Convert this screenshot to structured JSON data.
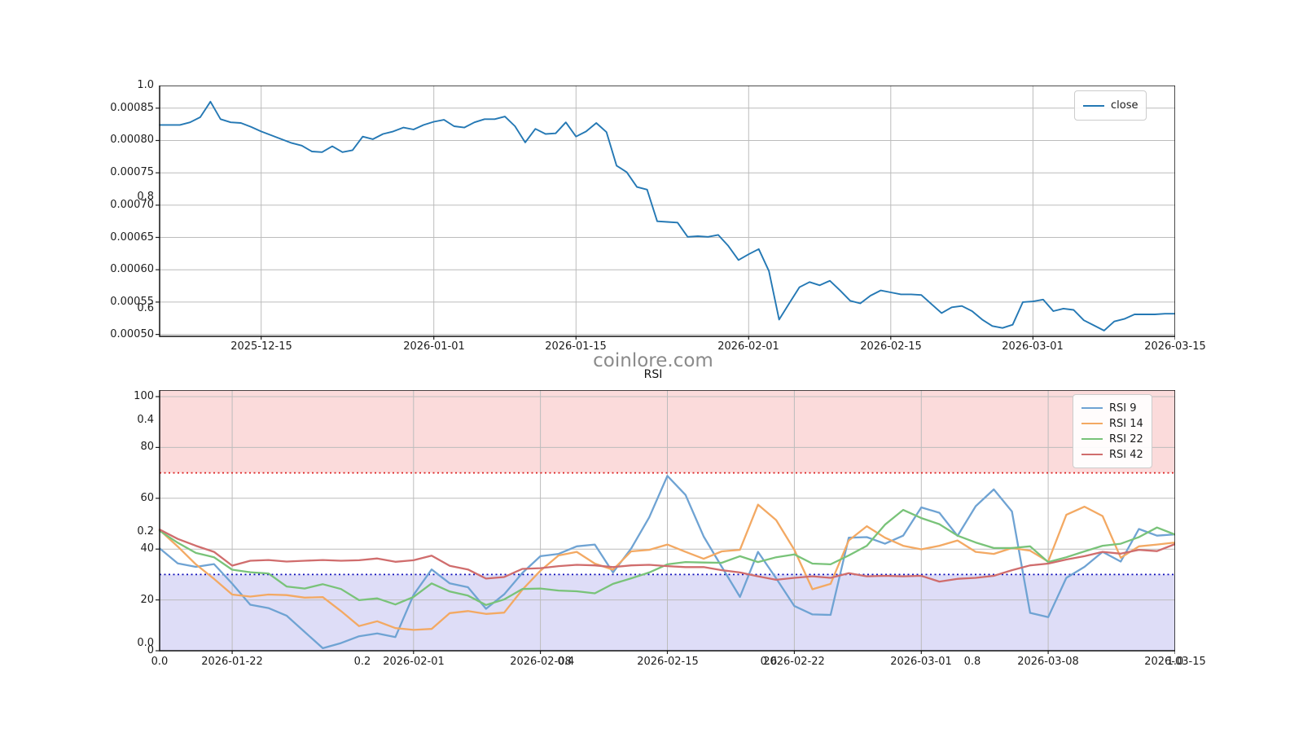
{
  "watermark": "coinlore.com",
  "overlay_axis": {
    "ytick_labels": [
      "1.0",
      "0.8",
      "0.6",
      "0.4",
      "0.2",
      "0.0"
    ],
    "xtick_labels": [
      "0.0",
      "0.2",
      "0.4",
      "0.6",
      "0.8",
      "1.0"
    ]
  },
  "chart_data": [
    {
      "id": "price",
      "type": "line",
      "title": "",
      "x_start": "2025-12-05",
      "x_end": "2026-03-15",
      "x_freq": "daily",
      "ylim": [
        0.000497,
        0.000885
      ],
      "grid": true,
      "legend_position": "upper right",
      "ytick_labels": [
        "0.00085",
        "0.00080",
        "0.00075",
        "0.00070",
        "0.00065",
        "0.00060",
        "0.00055",
        "0.00050"
      ],
      "ytick_values": [
        0.00085,
        0.0008,
        0.00075,
        0.0007,
        0.00065,
        0.0006,
        0.00055,
        0.0005
      ],
      "xtick_labels": [
        "2025-12-15",
        "2026-01-01",
        "2026-01-15",
        "2026-02-01",
        "2026-02-15",
        "2026-03-01",
        "2026-03-15"
      ],
      "xtick_day_index": [
        10,
        27,
        41,
        58,
        72,
        86,
        100
      ],
      "series": [
        {
          "name": "close",
          "color": "#2478b4",
          "width": 1.9,
          "values": [
            0.000824,
            0.000824,
            0.000824,
            0.000828,
            0.000836,
            0.00086,
            0.000833,
            0.000828,
            0.000827,
            0.000821,
            0.000814,
            0.000808,
            0.000802,
            0.000796,
            0.000792,
            0.000783,
            0.000782,
            0.000791,
            0.000782,
            0.000785,
            0.000806,
            0.000802,
            0.00081,
            0.000814,
            0.00082,
            0.000817,
            0.000824,
            0.000829,
            0.000832,
            0.000822,
            0.00082,
            0.000828,
            0.000833,
            0.000833,
            0.000837,
            0.000822,
            0.000797,
            0.000818,
            0.00081,
            0.000811,
            0.000828,
            0.000806,
            0.000814,
            0.000827,
            0.000813,
            0.000761,
            0.000751,
            0.000728,
            0.000724,
            0.000675,
            0.000674,
            0.000673,
            0.000651,
            0.000652,
            0.000651,
            0.000654,
            0.000637,
            0.000615,
            0.000624,
            0.000632,
            0.000598,
            0.000523,
            0.000548,
            0.000573,
            0.000581,
            0.000576,
            0.000583,
            0.000568,
            0.000552,
            0.000548,
            0.00056,
            0.000568,
            0.000565,
            0.000562,
            0.000562,
            0.000561,
            0.000547,
            0.000533,
            0.000542,
            0.000544,
            0.000536,
            0.000523,
            0.000513,
            0.00051,
            0.000515,
            0.00055,
            0.000551,
            0.000554,
            0.000536,
            0.00054,
            0.000538,
            0.000522,
            0.000514,
            0.000506,
            0.00052,
            0.000524,
            0.000531,
            0.000531,
            0.000531,
            0.000532,
            0.000532
          ]
        }
      ]
    },
    {
      "id": "rsi",
      "type": "line",
      "title": "RSI",
      "x_start": "2026-01-18",
      "x_end": "2026-03-15",
      "x_freq": "daily",
      "ylim": [
        0,
        102.56
      ],
      "grid": true,
      "legend_position": "upper right",
      "overbought_level": 70,
      "oversold_level": 30,
      "bands": [
        {
          "from": 70,
          "to": 102.56,
          "color": "#fbdbdb"
        },
        {
          "from": 0,
          "to": 30,
          "color": "#deddf7"
        }
      ],
      "hlines": [
        {
          "y": 70,
          "color": "#dd2222",
          "style": "dotted"
        },
        {
          "y": 30,
          "color": "#1111bb",
          "style": "dotted"
        }
      ],
      "ytick_labels": [
        "100",
        "80",
        "60",
        "40",
        "20",
        "0"
      ],
      "ytick_values": [
        100,
        80,
        60,
        40,
        20,
        0
      ],
      "xtick_labels": [
        "2026-01-22",
        "2026-02-01",
        "2026-02-08",
        "2026-02-15",
        "2026-02-22",
        "2026-03-01",
        "2026-03-08",
        "2026-03-15"
      ],
      "xtick_day_index": [
        4,
        14,
        21,
        28,
        35,
        42,
        49,
        56
      ],
      "series": [
        {
          "name": "RSI 9",
          "color": "#6fa3d3",
          "width": 2.3,
          "values": [
            40.3,
            34.4,
            33.0,
            34.1,
            26.4,
            18.1,
            16.8,
            13.8,
            7.4,
            1.0,
            3.0,
            5.7,
            6.8,
            5.4,
            22.0,
            32.0,
            26.5,
            25.0,
            16.5,
            22.2,
            30.6,
            37.2,
            38.1,
            41.1,
            41.8,
            30.8,
            40.2,
            52.5,
            68.8,
            61.3,
            45.0,
            33.0,
            21.2,
            38.9,
            28.5,
            17.6,
            14.3,
            14.1,
            44.5,
            44.7,
            42.1,
            45.3,
            56.4,
            54.3,
            45.2,
            56.9,
            63.5,
            54.8,
            14.9,
            13.2,
            28.7,
            33.0,
            38.9,
            35.1,
            47.9,
            45.3,
            45.8
          ]
        },
        {
          "name": "RSI 14",
          "color": "#f3a963",
          "width": 2.3,
          "values": [
            47.5,
            41.0,
            34.0,
            28.3,
            22.1,
            21.3,
            22.1,
            21.9,
            20.9,
            21.1,
            15.6,
            9.7,
            11.6,
            8.9,
            8.2,
            8.6,
            14.8,
            15.6,
            14.5,
            15.0,
            24.0,
            31.5,
            37.5,
            38.9,
            34.3,
            31.9,
            39.1,
            39.7,
            41.8,
            38.9,
            36.2,
            39.1,
            39.7,
            57.5,
            51.4,
            39.7,
            24.2,
            26.3,
            43.4,
            49.0,
            44.5,
            41.3,
            39.9,
            41.3,
            43.4,
            38.9,
            38.1,
            40.4,
            39.4,
            35.1,
            53.5,
            56.7,
            53.0,
            36.6,
            41.1,
            41.8,
            42.6
          ]
        },
        {
          "name": "RSI 22",
          "color": "#79c379",
          "width": 2.3,
          "values": [
            47.2,
            42.5,
            38.5,
            36.8,
            31.9,
            30.9,
            30.4,
            25.3,
            24.5,
            26.2,
            24.3,
            19.9,
            20.6,
            18.2,
            21.2,
            26.5,
            23.3,
            21.7,
            18.0,
            20.2,
            24.3,
            24.5,
            23.7,
            23.4,
            22.6,
            26.3,
            28.5,
            30.8,
            34.0,
            34.9,
            34.7,
            34.6,
            37.2,
            34.9,
            36.8,
            37.9,
            34.3,
            34.0,
            37.5,
            41.3,
            49.6,
            55.4,
            52.2,
            49.8,
            45.3,
            42.6,
            40.4,
            40.4,
            41.1,
            34.9,
            36.8,
            39.1,
            41.3,
            42.1,
            44.7,
            48.5,
            45.7
          ]
        },
        {
          "name": "RSI 42",
          "color": "#d06d6d",
          "width": 2.3,
          "values": [
            47.7,
            44.0,
            41.3,
            38.9,
            33.5,
            35.4,
            35.7,
            35.1,
            35.4,
            35.7,
            35.4,
            35.6,
            36.3,
            35.0,
            35.6,
            37.4,
            33.4,
            32.0,
            28.4,
            29.0,
            32.2,
            32.5,
            33.3,
            33.8,
            33.6,
            32.9,
            33.6,
            33.8,
            33.3,
            32.9,
            32.9,
            31.7,
            30.8,
            29.3,
            27.9,
            28.7,
            29.3,
            28.7,
            30.5,
            29.3,
            29.5,
            29.3,
            29.5,
            27.2,
            28.3,
            28.7,
            29.5,
            31.7,
            33.6,
            34.3,
            35.9,
            37.2,
            38.9,
            38.2,
            39.7,
            39.2,
            42.0
          ]
        }
      ]
    }
  ]
}
